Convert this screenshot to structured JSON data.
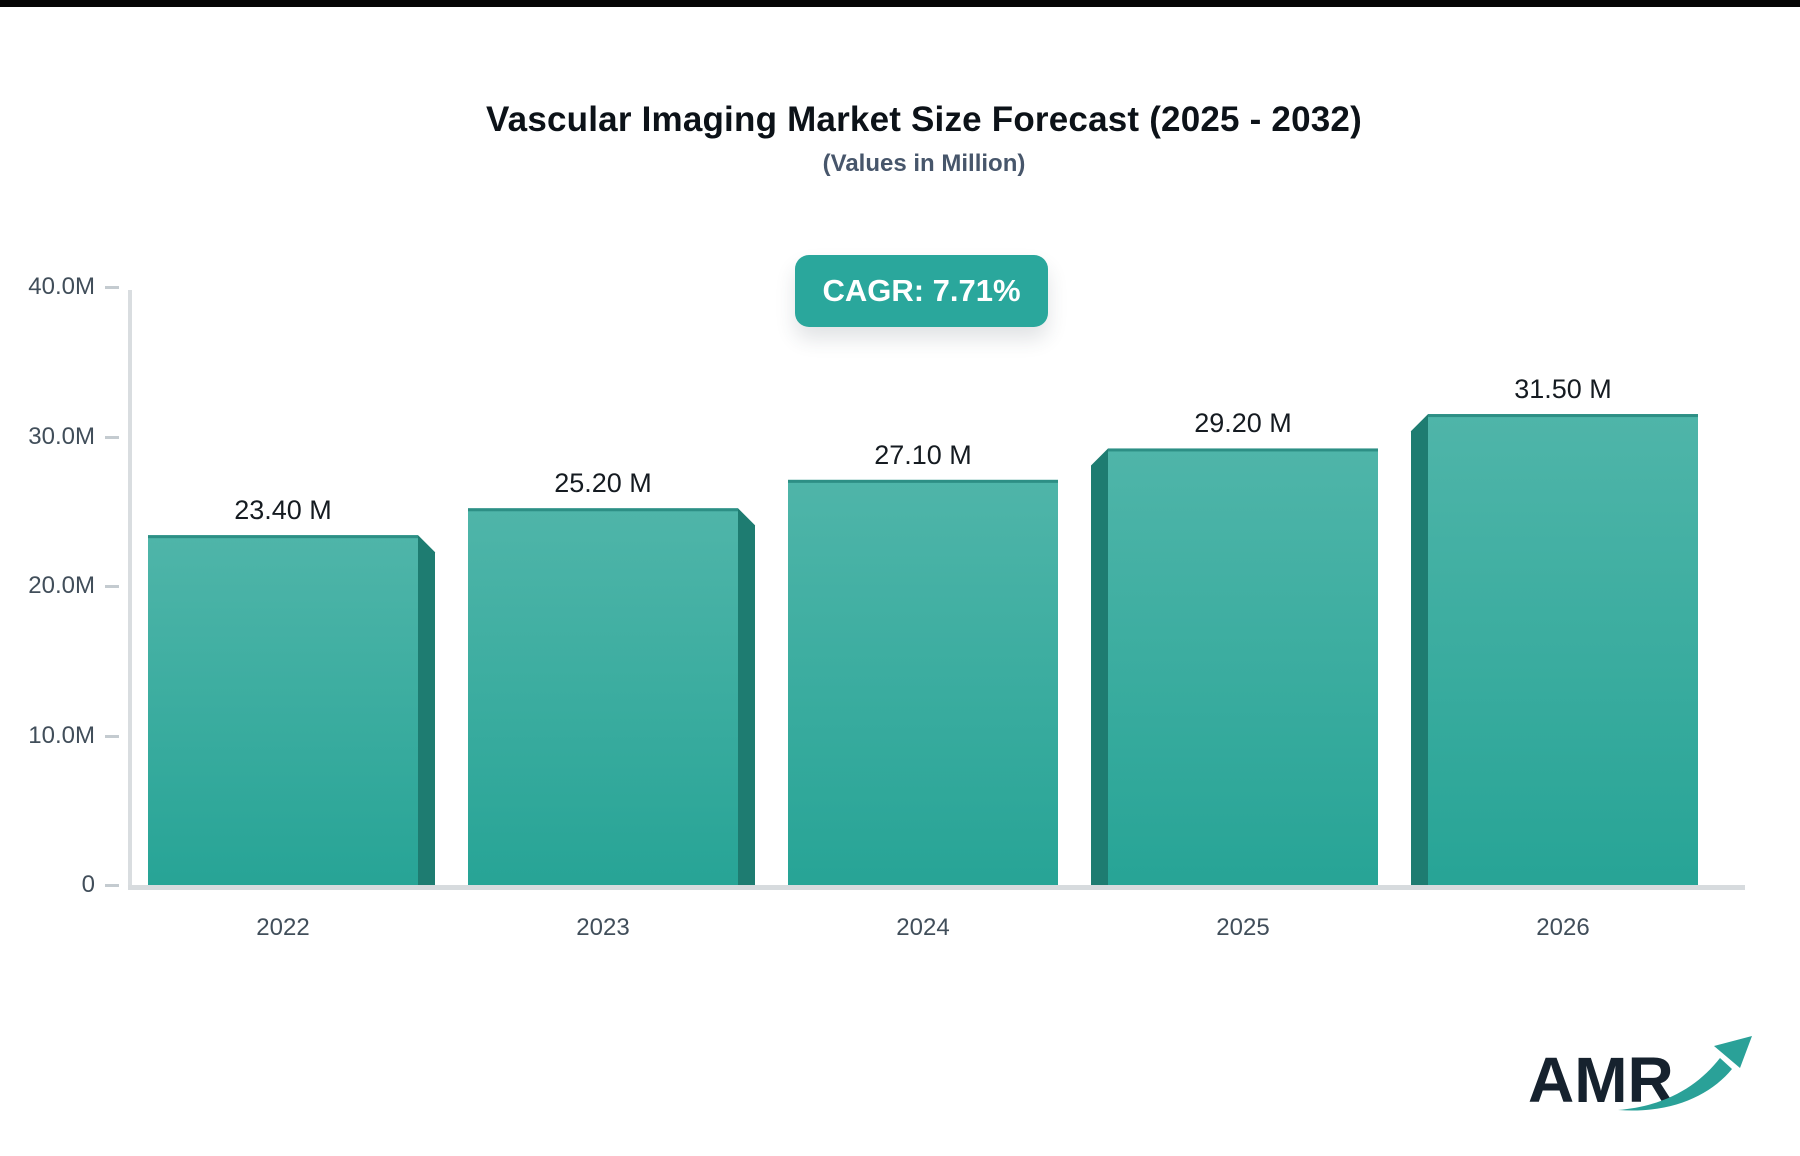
{
  "header": {
    "title": "Vascular Imaging Market Size Forecast (2025 - 2032)",
    "subtitle": "(Values in Million)"
  },
  "badge": {
    "label": "CAGR: 7.71%",
    "bg": "#2aa79c",
    "text_color": "#ffffff"
  },
  "logo": {
    "text": "AMR",
    "text_color": "#16222e",
    "arrow_color": "#2aa198"
  },
  "chart_data": {
    "type": "bar",
    "title": "Vascular Imaging Market Size Forecast (2025 - 2032)",
    "subtitle": "(Values in Million)",
    "categories": [
      "2022",
      "2023",
      "2024",
      "2025",
      "2026"
    ],
    "values": [
      23.4,
      25.2,
      27.1,
      29.2,
      31.5
    ],
    "value_labels": [
      "23.40 M",
      "25.20 M",
      "27.10 M",
      "29.20 M",
      "31.50 M"
    ],
    "unit": "Million",
    "cagr_label": "CAGR: 7.71%",
    "xlabel": "",
    "ylabel": "",
    "ylim": [
      0,
      40
    ],
    "ytick_labels": [
      "0",
      "10.0M",
      "20.0M",
      "30.0M",
      "40.0M"
    ],
    "grid": false,
    "legend": "none",
    "bar_color_top": "#4fb5a9",
    "bar_color_bottom": "#27a496",
    "bar_top_edge_color": "#2d8f85",
    "bar_side_color": "#1e7c71",
    "axis_color": "#d9dde0",
    "tick_color": "#c4cbd0"
  }
}
